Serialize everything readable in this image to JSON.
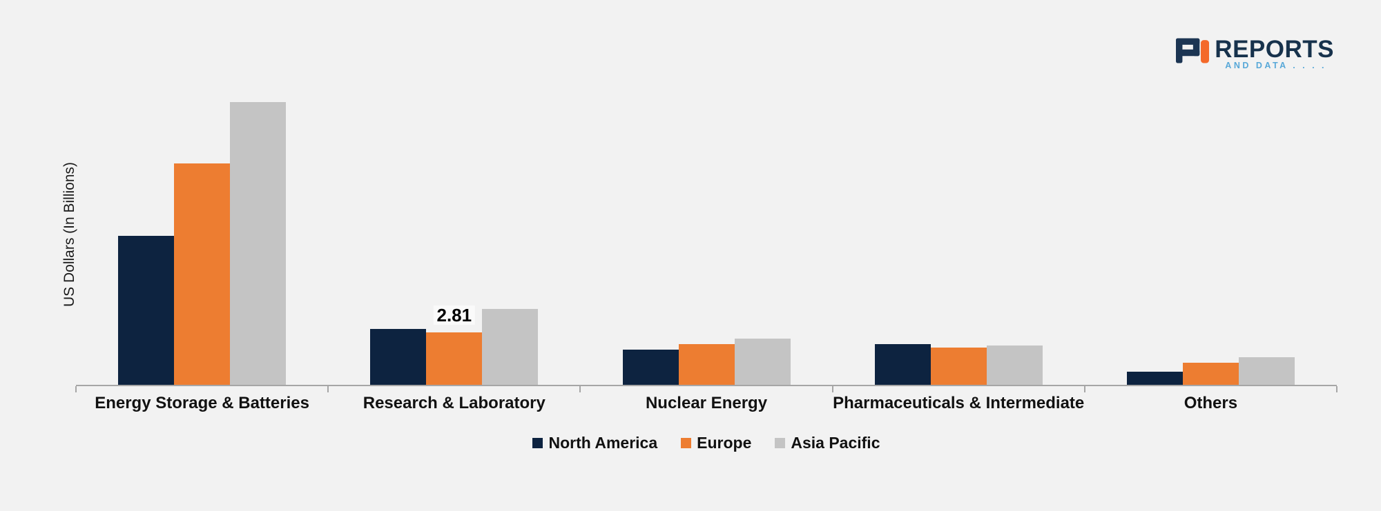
{
  "page": {
    "background": "#f2f2f2"
  },
  "logo": {
    "name": "Reports and Data",
    "title": "REPORTS",
    "subtitle": "AND DATA . . . .",
    "title_color": "#17324c",
    "subtitle_color": "#58a8d8",
    "icon_navy": "#1c3553",
    "icon_orange": "#f4692a"
  },
  "chart_data": {
    "type": "bar",
    "title": "",
    "xlabel": "",
    "ylabel": "US Dollars (In Billions)",
    "categories": [
      "Energy Storage & Batteries",
      "Research & Laboratory",
      "Nuclear Energy",
      "Pharmaceuticals & Intermediate",
      "Others"
    ],
    "series": [
      {
        "name": "North America",
        "color": "#0d2340",
        "values": [
          8.0,
          3.0,
          1.9,
          2.2,
          0.7
        ]
      },
      {
        "name": "Europe",
        "color": "#ed7d31",
        "values": [
          11.9,
          2.81,
          2.2,
          2.0,
          1.2
        ]
      },
      {
        "name": "Asia Pacific",
        "color": "#c4c4c4",
        "values": [
          15.2,
          4.1,
          2.5,
          2.1,
          1.5
        ]
      }
    ],
    "data_labels": [
      {
        "category_index": 1,
        "series_index": 1,
        "text": "2.81"
      }
    ],
    "ylim": [
      0,
      17
    ],
    "grid": false,
    "legend_position": "bottom",
    "axis_color": "#a6a6a6"
  }
}
